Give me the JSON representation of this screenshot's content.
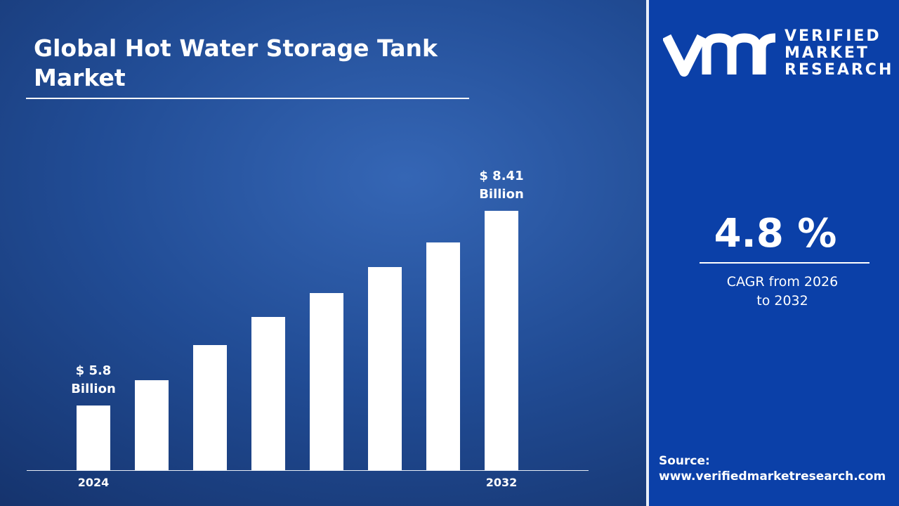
{
  "chart_data": {
    "type": "bar",
    "title": "Global Hot Water Storage Tank Market",
    "categories": [
      "2024",
      null,
      null,
      null,
      null,
      null,
      null,
      "2032"
    ],
    "values": [
      5.8,
      6.14,
      6.61,
      6.99,
      7.31,
      7.66,
      7.99,
      8.41
    ],
    "value_labels": [
      "$ 5.8 Billion",
      null,
      null,
      null,
      null,
      null,
      null,
      "$ 8.41 Billion"
    ],
    "ylim": [
      4.93,
      8.41
    ],
    "color": "#ffffff"
  },
  "brand": {
    "line1": "VERIFIED",
    "line2": "MARKET",
    "line3": "RESEARCH"
  },
  "stats": {
    "cagr": "4.8 %",
    "cagr_label": "CAGR from 2026 to 2032"
  },
  "source": {
    "label": "Source:",
    "url": "www.verifiedmarketresearch.com"
  }
}
